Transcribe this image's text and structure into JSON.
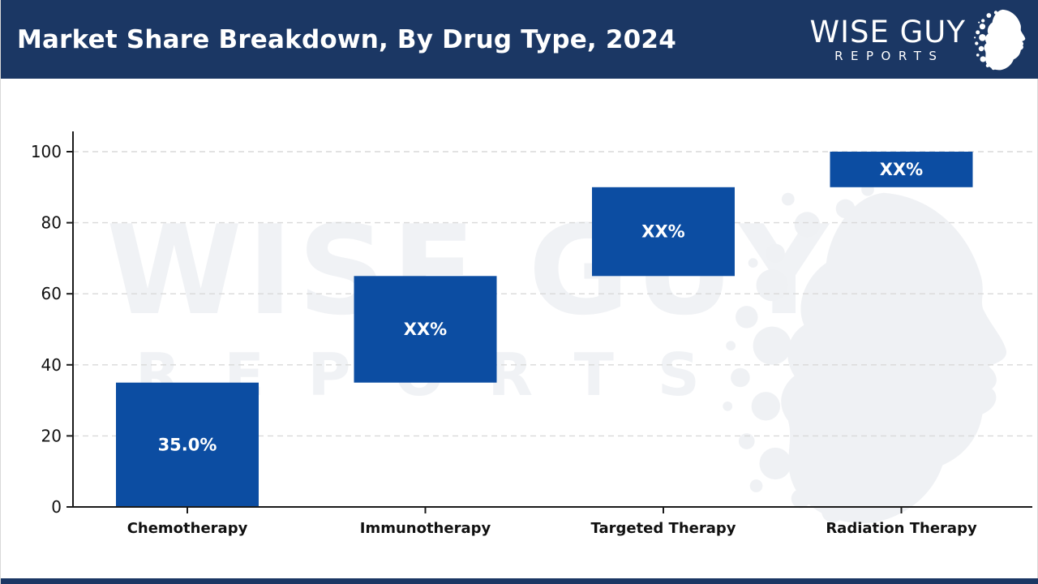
{
  "header": {
    "title": "Market Share Breakdown, By Drug Type, 2024",
    "logo_line1": "WISE GUY",
    "logo_line2": "REPORTS"
  },
  "watermark": {
    "line1": "WISE GUY",
    "line2": "REPORTS"
  },
  "colors": {
    "header_bg": "#1b3764",
    "footer_bg": "#1b3764",
    "bar_fill": "#0c4da2",
    "bar_label": "#ffffff",
    "gridline": "#d9d9d9",
    "axis": "#1a1a1a",
    "tick_text": "#111111",
    "watermark": "#f0f2f5"
  },
  "chart_data": {
    "type": "bar",
    "variant": "floating-segment-waterfall",
    "title": "Market Share Breakdown, By Drug Type, 2024",
    "categories": [
      "Chemotherapy",
      "Immunotherapy",
      "Targeted Therapy",
      "Radiation Therapy"
    ],
    "segments": [
      {
        "category": "Chemotherapy",
        "from": 0,
        "to": 35,
        "label": "35.0%"
      },
      {
        "category": "Immunotherapy",
        "from": 35,
        "to": 65,
        "label": "XX%"
      },
      {
        "category": "Targeted Therapy",
        "from": 65,
        "to": 90,
        "label": "XX%"
      },
      {
        "category": "Radiation Therapy",
        "from": 90,
        "to": 100,
        "label": "XX%"
      }
    ],
    "xlabel": "",
    "ylabel": "",
    "yticks": [
      0,
      20,
      40,
      60,
      80,
      100
    ],
    "ylim": [
      0,
      106
    ],
    "grid": "horizontal-dashed",
    "legend": "none"
  }
}
